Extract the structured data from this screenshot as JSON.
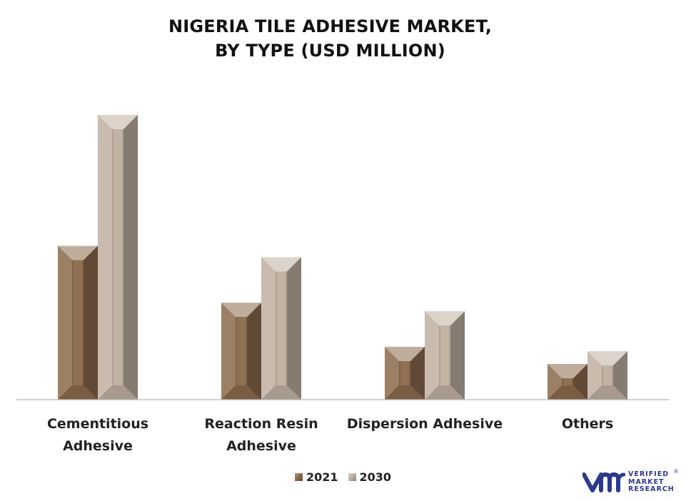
{
  "chart_data": {
    "type": "bar",
    "title": [
      "NIGERIA TILE ADHESIVE MARKET,",
      "BY TYPE (USD MILLION)"
    ],
    "categories": [
      [
        "Cementitious",
        "Adhesive"
      ],
      [
        "Reaction Resin",
        "Adhesive"
      ],
      [
        "Dispersion Adhesive"
      ],
      [
        "Others"
      ]
    ],
    "series": [
      {
        "name": "2021",
        "values": [
          54,
          34,
          18.5,
          12.5
        ],
        "color": "#8b6a4b"
      },
      {
        "name": "2030",
        "values": [
          100,
          50,
          31,
          17
        ],
        "color": "#bfb0a0"
      }
    ],
    "ylim": [
      0,
      100
    ],
    "grid": false,
    "legend": "bottom-center"
  },
  "logo": {
    "name": [
      "VERIFIED",
      "MARKET",
      "RESEARCH"
    ],
    "mark": "®",
    "color": "#2c3a8c"
  }
}
